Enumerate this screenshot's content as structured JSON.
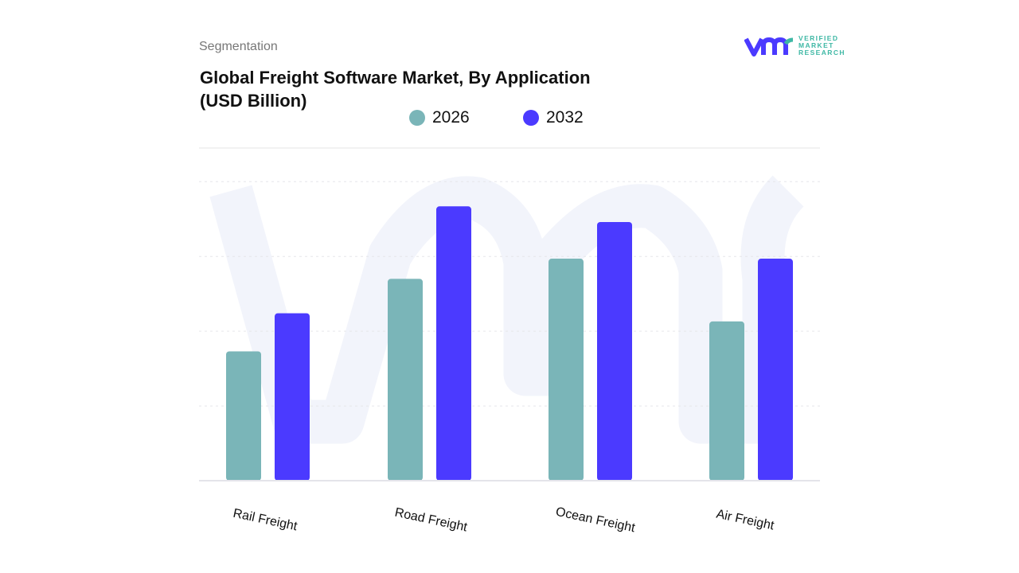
{
  "header": {
    "section": "Segmentation",
    "title_line1": "Global Freight Software Market, By Application",
    "title_line2": "(USD Billion)"
  },
  "logo": {
    "line1": "VERIFIED",
    "line2": "MARKET",
    "line3": "RESEARCH",
    "mark": "vmr"
  },
  "chart_data": {
    "type": "bar",
    "title": "Global Freight Software Market, By Application (USD Billion)",
    "categories": [
      "Rail Freight",
      "Road Freight",
      "Ocean Freight",
      "Air Freight"
    ],
    "series": [
      {
        "name": "2026",
        "color": "#7ab5b8",
        "values": [
          1.73,
          2.7,
          2.97,
          2.13
        ]
      },
      {
        "name": "2032",
        "color": "#4b3aff",
        "values": [
          2.24,
          3.67,
          3.46,
          2.97
        ]
      }
    ],
    "ylim": [
      0,
      4.45
    ],
    "grid": true,
    "legend": "top-center",
    "xlabel": "",
    "ylabel": ""
  }
}
